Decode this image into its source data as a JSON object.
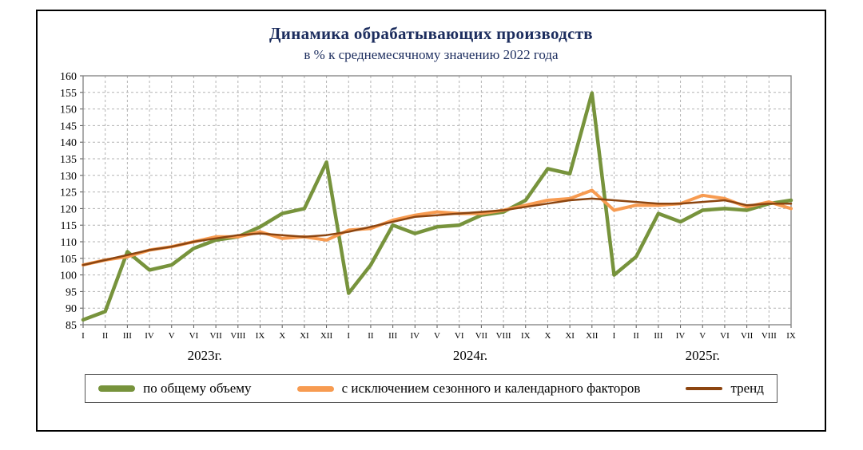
{
  "title": "Динамика обрабатывающих производств",
  "subtitle": "в % к среднемесячному значению 2022 года",
  "legend": [
    {
      "label": "по общему объему"
    },
    {
      "label": "с исключением сезонного и календарного факторов"
    },
    {
      "label": "тренд"
    }
  ],
  "chart_data": {
    "type": "line",
    "title": "Динамика обрабатывающих производств",
    "subtitle": "в % к среднемесячному значению 2022 года",
    "ylim": [
      85,
      160
    ],
    "ytick_step": 5,
    "grid": true,
    "legend_position": "bottom",
    "x_tick_labels": [
      "I",
      "II",
      "III",
      "IV",
      "V",
      "VI",
      "VII",
      "VIII",
      "IX",
      "X",
      "XI",
      "XII",
      "I",
      "II",
      "III",
      "IV",
      "V",
      "VI",
      "VII",
      "VIII",
      "IX",
      "X",
      "XI",
      "XII",
      "I",
      "II",
      "III",
      "IV",
      "V",
      "VI",
      "VII",
      "VIII",
      "IX"
    ],
    "year_groups": [
      {
        "label": "2023г.",
        "months": 12
      },
      {
        "label": "2024г.",
        "months": 12
      },
      {
        "label": "2025г.",
        "months": 9
      }
    ],
    "series": [
      {
        "name": "по общему объему",
        "color": "#77933C",
        "width": 4.5,
        "values": [
          86.5,
          89,
          107,
          101.5,
          103,
          108,
          110.5,
          111.5,
          114.5,
          118.5,
          120,
          134,
          94.5,
          103,
          115,
          112.5,
          114.5,
          115,
          118,
          119,
          122.5,
          132,
          130.5,
          154.8,
          100,
          105.5,
          118.5,
          116,
          119.5,
          120,
          119.5,
          121.5,
          122.5
        ]
      },
      {
        "name": "с исключением сезонного и календарного факторов",
        "color": "#F79B51",
        "width": 4,
        "values": [
          103,
          104.5,
          105.5,
          107.5,
          108.5,
          110,
          111.5,
          111.5,
          113,
          111,
          111.5,
          110.5,
          113.5,
          114,
          116.5,
          118,
          119,
          118.5,
          118.5,
          119.5,
          121,
          122.5,
          123,
          125.5,
          119.5,
          121,
          121,
          121.5,
          124,
          123,
          120.5,
          122,
          120
        ]
      },
      {
        "name": "тренд",
        "color": "#8C4510",
        "width": 2.5,
        "values": [
          103,
          104.5,
          106,
          107.5,
          108.5,
          110,
          111,
          112,
          112.5,
          112,
          111.5,
          112,
          113,
          114.5,
          116,
          117.5,
          118,
          118.5,
          119,
          119.5,
          120.5,
          121.5,
          122.5,
          123,
          122.5,
          122,
          121.5,
          121.5,
          122,
          122.5,
          121,
          121.5,
          121.5
        ]
      }
    ]
  }
}
